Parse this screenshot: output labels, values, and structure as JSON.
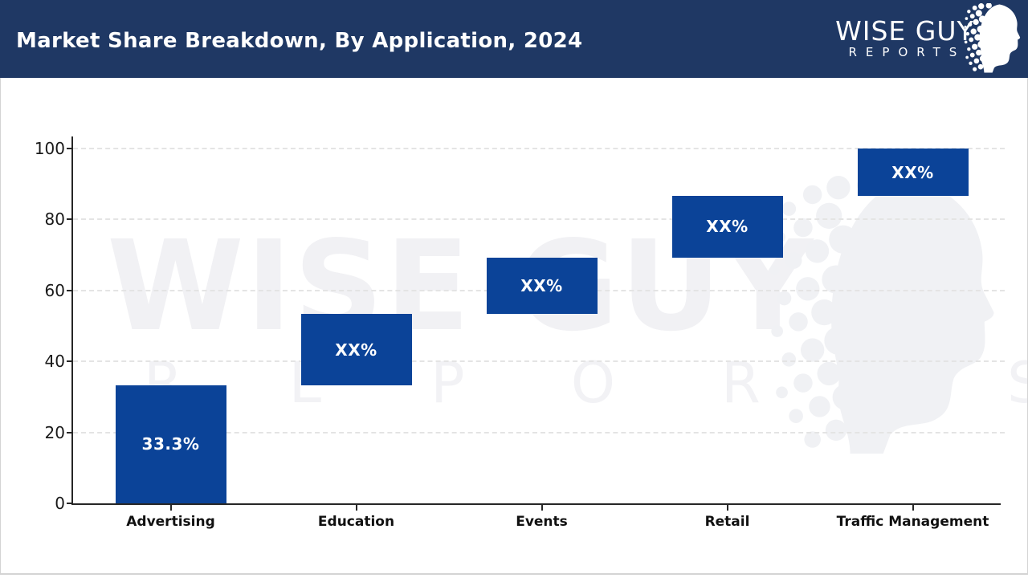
{
  "header": {
    "title": "Market Share Breakdown, By Application, 2024",
    "bg_color": "#1f3864",
    "logo": {
      "line1": "WISE GUY",
      "line2": "REPORTS"
    }
  },
  "watermark": {
    "line1": "WISE GUY",
    "line2": "REPORTS"
  },
  "chart_data": {
    "type": "bar",
    "subtype": "floating-waterfall",
    "title": "Market Share Breakdown, By Application, 2024",
    "categories": [
      "Advertising",
      "Education",
      "Events",
      "Retail",
      "Traffic Management"
    ],
    "segments": [
      {
        "category": "Advertising",
        "start": 0,
        "end": 33.3,
        "label": "33.3%"
      },
      {
        "category": "Education",
        "start": 33.3,
        "end": 53.3,
        "label": "XX%"
      },
      {
        "category": "Events",
        "start": 53.3,
        "end": 69.3,
        "label": "XX%"
      },
      {
        "category": "Retail",
        "start": 69.3,
        "end": 86.6,
        "label": "XX%"
      },
      {
        "category": "Traffic Management",
        "start": 86.6,
        "end": 100,
        "label": "XX%"
      }
    ],
    "ylim": [
      0,
      100
    ],
    "yticks": [
      0,
      20,
      40,
      60,
      80,
      100
    ],
    "grid": "horizontal-dashed",
    "legend": "none",
    "bar_color": "#0b4398",
    "bar_label_color": "#ffffff",
    "axis_color": "#262626"
  }
}
